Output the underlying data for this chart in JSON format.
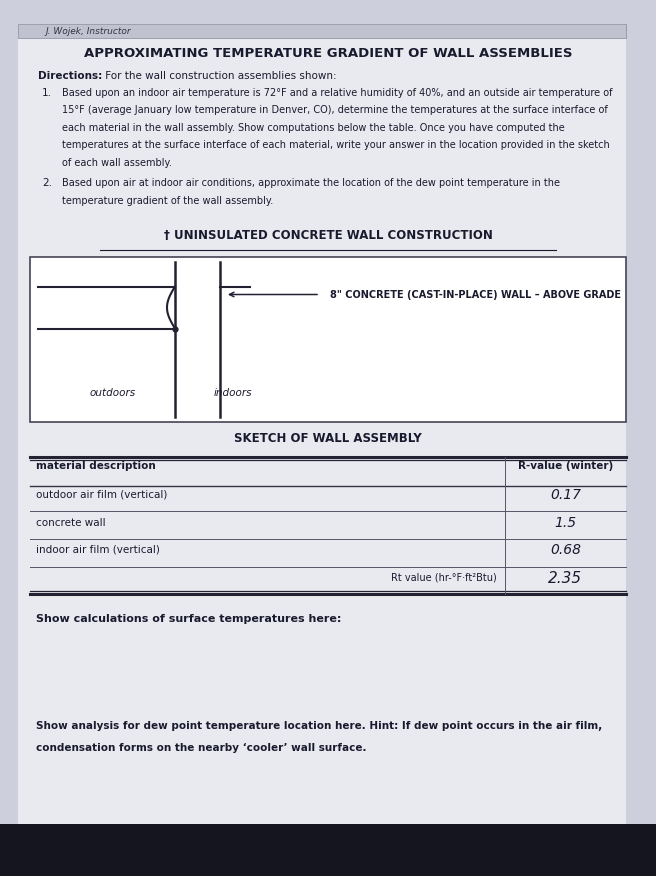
{
  "title": "APPROXIMATING TEMPERATURE GRADIENT OF WALL ASSEMBLIES",
  "directions_label": "Directions:",
  "directions_text": " For the wall construction assemblies shown:",
  "item1_lines": [
    "Based upon an indoor air temperature is 72°F and a relative humidity of 40%, and an outside air temperature of",
    "15°F (average January low temperature in Denver, CO), determine the temperatures at the surface interface of",
    "each material in the wall assembly. Show computations below the table. Once you have computed the",
    "temperatures at the surface interface of each material, write your answer in the location provided in the sketch",
    "of each wall assembly."
  ],
  "item2_lines": [
    "Based upon air at indoor air conditions, approximate the location of the dew point temperature in the",
    "temperature gradient of the wall assembly."
  ],
  "section_title": "† UNINSULATED CONCRETE WALL CONSTRUCTION",
  "wall_label": "8\" CONCRETE (CAST-IN-PLACE) WALL – ABOVE GRADE",
  "sketch_label": "SKETCH OF WALL ASSEMBLY",
  "outdoors_label": "outdoors",
  "indoors_label": "indoors",
  "table_headers": [
    "material description",
    "R-value (winter)"
  ],
  "table_rows": [
    [
      "outdoor air film (vertical)",
      "0.17"
    ],
    [
      "concrete wall",
      "1.5"
    ],
    [
      "indoor air film (vertical)",
      "0.68"
    ]
  ],
  "table_total_label": "Rt value (hr-°F·ft²Btu)",
  "table_total_value": "2.35",
  "calc_label": "Show calculations of surface temperatures here:",
  "dew_line1": "Show analysis for dew point temperature location here. Hint: If dew point occurs in the air film,",
  "dew_line2": "condensation forms on the nearby ‘cooler’ wall surface.",
  "header_text": "J. Wojek, Instructor",
  "bg_color": "#cdd0dc",
  "paper_color": "#e9eaf0",
  "text_color": "#1a1a2e",
  "dark_color": "#111122"
}
